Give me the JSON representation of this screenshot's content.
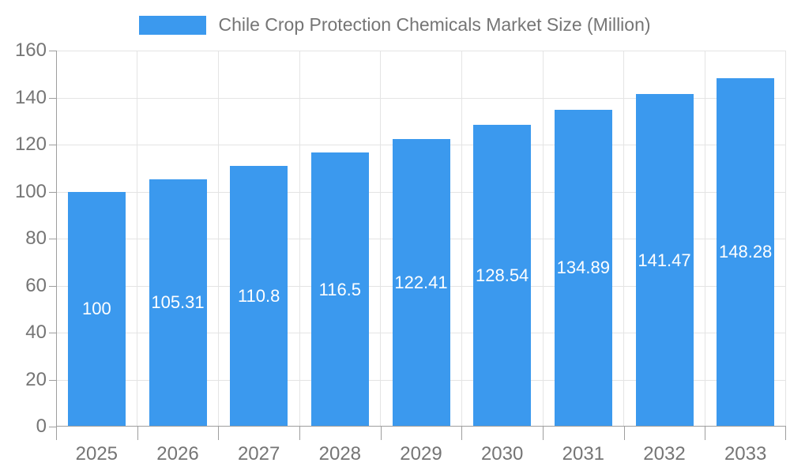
{
  "chart_data": {
    "type": "bar",
    "title": "Chile Crop Protection Chemicals Market Size (Million)",
    "categories": [
      "2025",
      "2026",
      "2027",
      "2028",
      "2029",
      "2030",
      "2031",
      "2032",
      "2033"
    ],
    "values": [
      100,
      105.31,
      110.8,
      116.5,
      122.41,
      128.54,
      134.89,
      141.47,
      148.28
    ],
    "bar_labels": [
      "100",
      "105.31",
      "110.8",
      "116.5",
      "122.41",
      "128.54",
      "134.89",
      "141.47",
      "148.28"
    ],
    "xlabel": "",
    "ylabel": "",
    "ylim": [
      0,
      160
    ],
    "ytick_step": 20,
    "ytick_labels": [
      "0",
      "20",
      "40",
      "60",
      "80",
      "100",
      "120",
      "140",
      "160"
    ],
    "grid": true,
    "legend_position": "top",
    "colors": {
      "bar": "#3b99ee",
      "axis": "#9e9e9e",
      "grid": "#e4e4e4",
      "tick_text": "#757575",
      "bar_label_text": "#ffffff",
      "background": "#ffffff"
    }
  }
}
